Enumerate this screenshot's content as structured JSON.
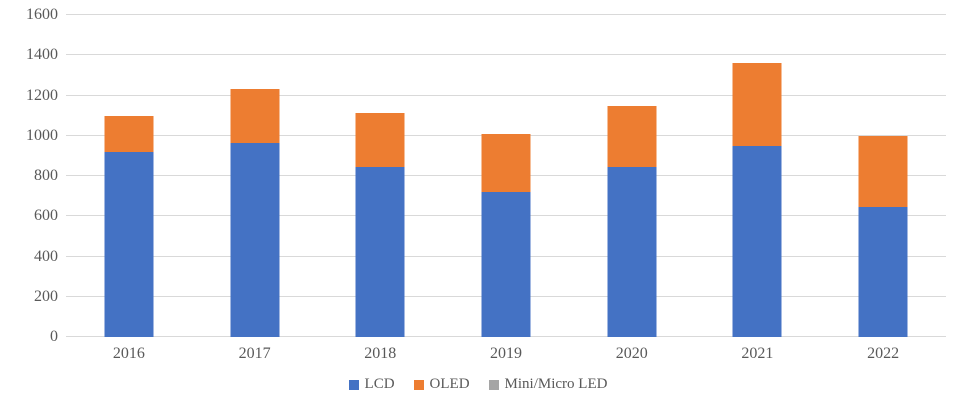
{
  "chart_data": {
    "type": "bar",
    "stacked": true,
    "title": "",
    "xlabel": "",
    "ylabel": "",
    "categories": [
      "2016",
      "2017",
      "2018",
      "2019",
      "2020",
      "2021",
      "2022"
    ],
    "series": [
      {
        "name": "LCD",
        "color": "#4472C4",
        "values": [
          920,
          965,
          845,
          720,
          845,
          950,
          645
        ]
      },
      {
        "name": "OLED",
        "color": "#ED7D31",
        "values": [
          180,
          265,
          270,
          290,
          305,
          410,
          355
        ]
      },
      {
        "name": "Mini/Micro LED",
        "color": "#A5A5A5",
        "values": [
          0,
          0,
          0,
          0,
          0,
          0,
          0
        ]
      }
    ],
    "stack_totals": [
      1100,
      1230,
      1115,
      1010,
      1150,
      1360,
      1000
    ],
    "ylim": [
      0,
      1600
    ],
    "ytick_interval": 200,
    "yticks": [
      "0",
      "200",
      "400",
      "600",
      "800",
      "1000",
      "1200",
      "1400",
      "1600"
    ],
    "grid": true,
    "gridline_color": "#d9d9d9",
    "axis_text_color": "#595959",
    "legend_position": "bottom",
    "legend": [
      "LCD",
      "OLED",
      "Mini/Micro LED"
    ]
  }
}
